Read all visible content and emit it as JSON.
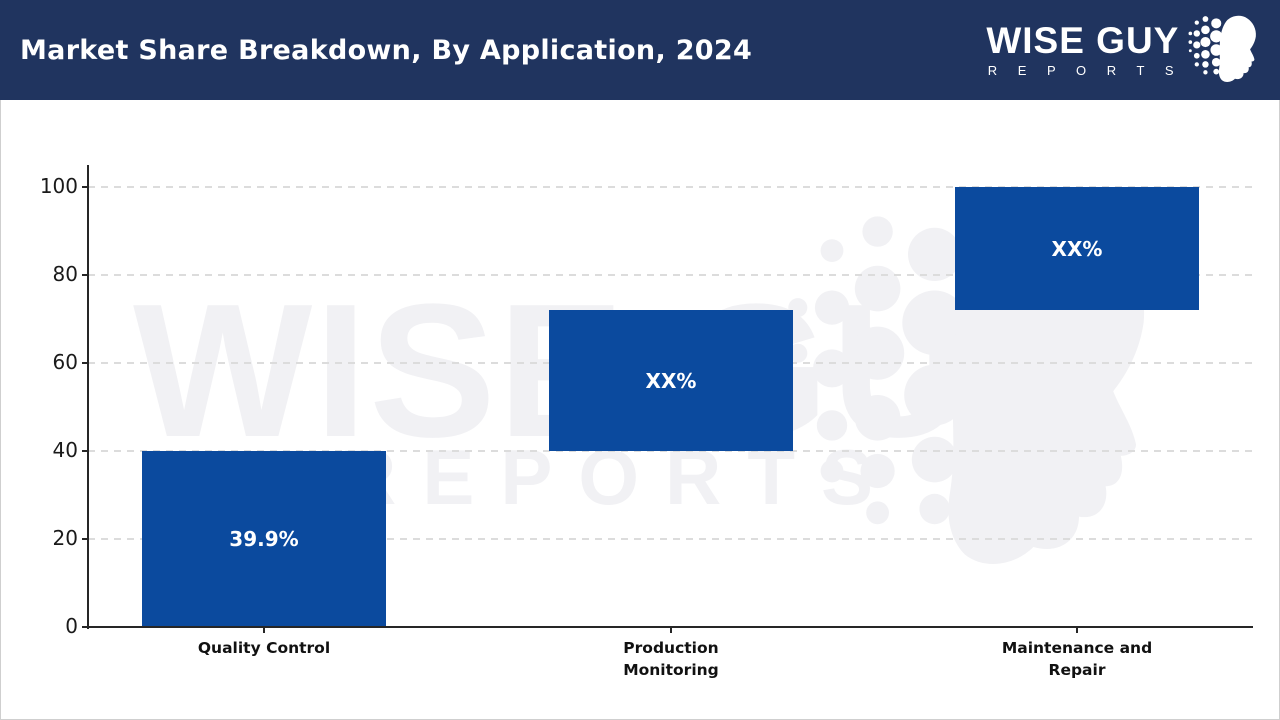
{
  "page": {
    "title": "Market Share Breakdown, By Application, 2024"
  },
  "brand": {
    "name": "WISE GUY",
    "sub": "R E P O R T S"
  },
  "watermark": {
    "line1": "WISE GUY",
    "line2": "REPORTS"
  },
  "colors": {
    "header_bg": "#20345f",
    "bar": "#0b4a9e",
    "bar_label": "#ffffff",
    "grid": "#dcdcdc",
    "axis": "#262626",
    "watermark": "#f1f1f4",
    "page_border": "#cfcfcf"
  },
  "icons": {
    "brand_face": "face-profile-dots-icon"
  },
  "chart_data": {
    "type": "bar",
    "subtype": "floating-breakdown-bars",
    "title": "Market Share Breakdown, By Application, 2024",
    "unit": "%",
    "categories": [
      "Quality Control",
      "Production Monitoring",
      "Maintenance and Repair"
    ],
    "bars": [
      {
        "category": "Quality Control",
        "category_display": "Quality Control",
        "start": 0,
        "end": 39.9,
        "label": "39.9%"
      },
      {
        "category": "Production Monitoring",
        "category_display": "Production\nMonitoring",
        "start": 39.9,
        "end": 72,
        "label": "XX%"
      },
      {
        "category": "Maintenance and Repair",
        "category_display": "Maintenance and\nRepair",
        "start": 72,
        "end": 100,
        "label": "XX%"
      }
    ],
    "yticks": [
      0,
      20,
      40,
      60,
      80,
      100
    ],
    "ylim": [
      0,
      105
    ],
    "xlabel": "",
    "ylabel": "",
    "grid": "horizontal-dashed",
    "legend": "none"
  }
}
